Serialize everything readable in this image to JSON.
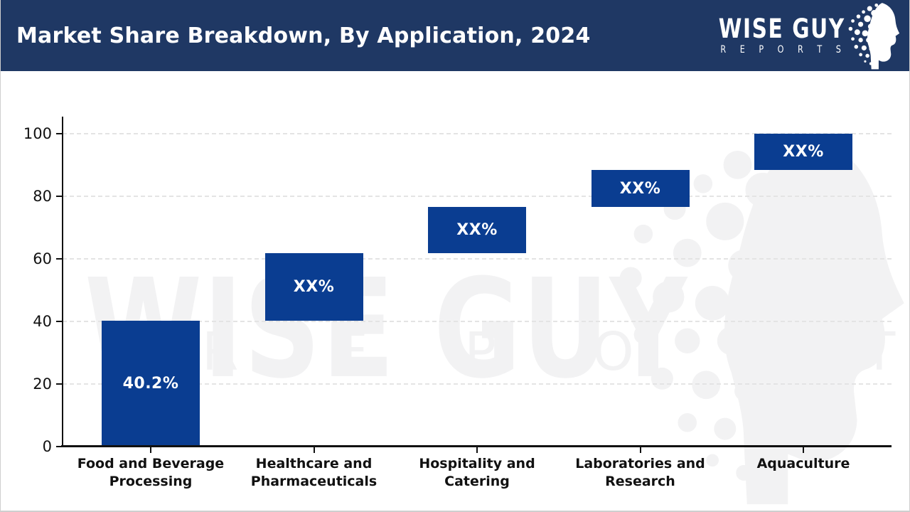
{
  "header": {
    "title": "Market Share Breakdown, By Application, 2024",
    "logo": {
      "line1": "WISE GUY",
      "line2": "R E P O R T S"
    }
  },
  "watermark": {
    "line1": "WISE GUY",
    "line2": "R E P O R T S"
  },
  "colors": {
    "header_bg": "#1f3864",
    "bar": "#0a3d91",
    "bar_label": "#ffffff",
    "axis": "#111111",
    "gridline": "#e4e4e4",
    "watermark": "#f2f2f3"
  },
  "chart_data": {
    "type": "bar",
    "subtype": "waterfall-floating-segments",
    "title": "Market Share Breakdown, By Application, 2024",
    "categories": [
      "Food and Beverage Processing",
      "Healthcare and Pharmaceuticals",
      "Hospitality and Catering",
      "Laboratories and Research",
      "Aquaculture"
    ],
    "segments": [
      {
        "category": "Food and Beverage Processing",
        "start": 0,
        "end": 40.2,
        "label": "40.2%"
      },
      {
        "category": "Healthcare and Pharmaceuticals",
        "start": 40.2,
        "end": 61.8,
        "label": "XX%"
      },
      {
        "category": "Hospitality and Catering",
        "start": 61.8,
        "end": 76.4,
        "label": "XX%"
      },
      {
        "category": "Laboratories and Research",
        "start": 76.4,
        "end": 88.2,
        "label": "XX%"
      },
      {
        "category": "Aquaculture",
        "start": 88.2,
        "end": 100,
        "label": "XX%"
      }
    ],
    "xlabel": "",
    "ylabel": "",
    "ylim": [
      0,
      105
    ],
    "yticks": [
      0,
      20,
      40,
      60,
      80,
      100
    ],
    "grid": "horizontal-dashed",
    "legend": "none"
  }
}
